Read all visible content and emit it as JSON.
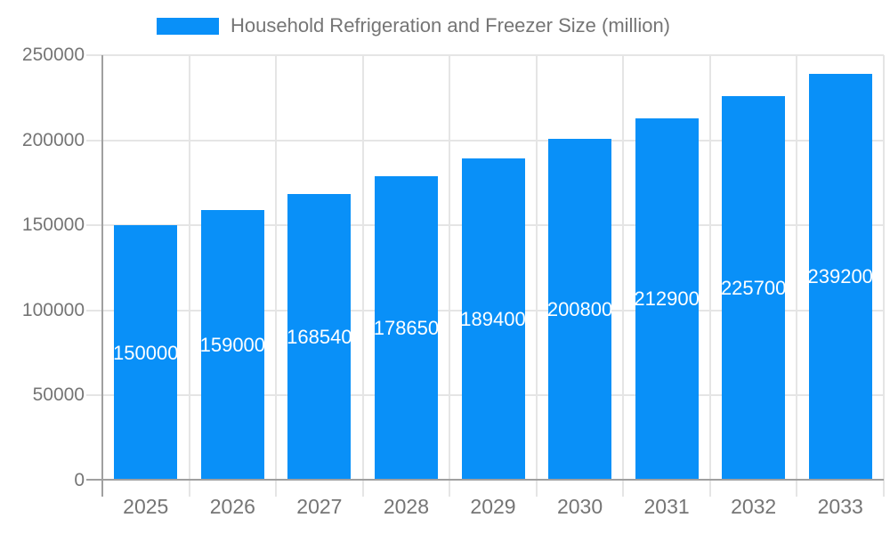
{
  "legend": {
    "label": "Household Refrigeration and Freezer Size (million)"
  },
  "chart_data": {
    "type": "bar",
    "title": "Household Refrigeration and Freezer Size (million)",
    "categories": [
      "2025",
      "2026",
      "2027",
      "2028",
      "2029",
      "2030",
      "2031",
      "2032",
      "2033"
    ],
    "values": [
      150000,
      159000,
      168540,
      178650,
      189400,
      200800,
      212900,
      225700,
      239200
    ],
    "bar_labels": [
      "150000",
      "159000",
      "168540",
      "178650",
      "189400",
      "200800",
      "212900",
      "225700",
      "239200"
    ],
    "xlabel": "",
    "ylabel": "",
    "ylim": [
      0,
      250000
    ],
    "y_ticks": [
      0,
      50000,
      100000,
      150000,
      200000,
      250000
    ],
    "grid": true,
    "legend_position": "top",
    "colors": {
      "bar": "#0990f8",
      "axis": "#a0a0a0",
      "grid": "#e5e5e5",
      "tick_text": "#757575",
      "bar_label_text": "#ffffff",
      "background": "#ffffff"
    }
  }
}
